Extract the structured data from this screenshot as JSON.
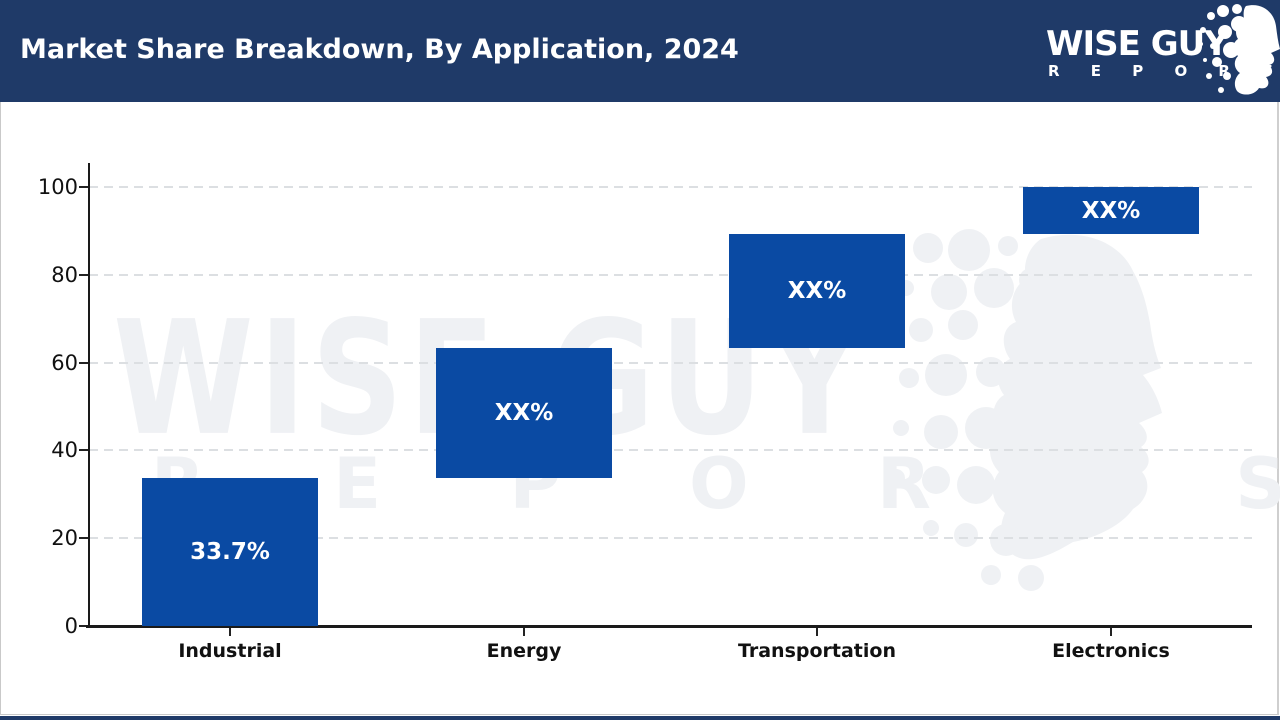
{
  "page": {
    "background": "#ffffff",
    "accent_navy": "#1f3a68",
    "card_border": "#c9c9c9"
  },
  "header": {
    "title": "Market Share Breakdown, By Application, 2024",
    "logo_line1": "WISE GUY",
    "logo_line2": "R E P O R T S"
  },
  "watermark": {
    "line1": "WISE GUY",
    "line2": "R E P O R T S"
  },
  "chart_data": {
    "type": "bar",
    "subtype": "floating-waterfall",
    "title": "Market Share Breakdown, By Application, 2024",
    "categories": [
      "Industrial",
      "Energy",
      "Transportation",
      "Electronics"
    ],
    "segments": [
      {
        "category": "Industrial",
        "start": 0,
        "end": 33.7,
        "label": "33.7%"
      },
      {
        "category": "Energy",
        "start": 33.7,
        "end": 63.3,
        "label": "XX%"
      },
      {
        "category": "Transportation",
        "start": 63.3,
        "end": 89.2,
        "label": "XX%"
      },
      {
        "category": "Electronics",
        "start": 89.2,
        "end": 100,
        "label": "XX%"
      }
    ],
    "yticks": [
      0,
      20,
      40,
      60,
      80,
      100
    ],
    "ylim": [
      0,
      105.5
    ],
    "xlabel": "",
    "ylabel": "",
    "grid": "horizontal-dashed",
    "legend": "none",
    "bar_color": "#0a4aa3",
    "bar_label_color": "#ffffff",
    "axis_color": "#1a1a1a",
    "gridline_color": "#dcdfe2"
  }
}
